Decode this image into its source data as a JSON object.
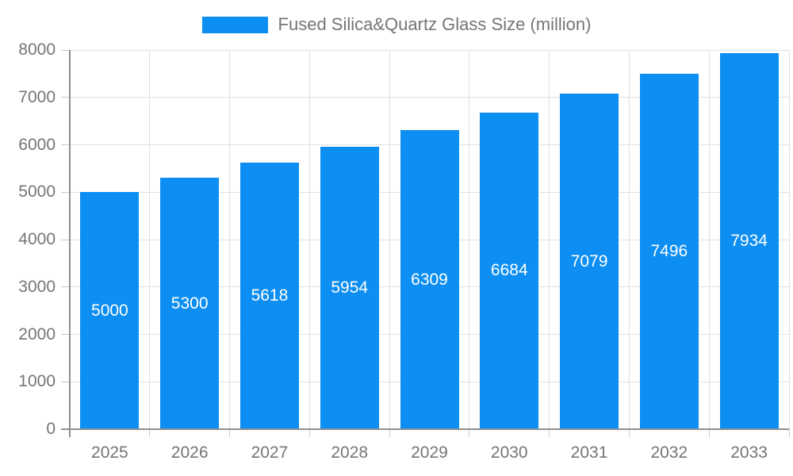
{
  "chart_data": {
    "type": "bar",
    "title": "Fused Silica&Quartz Glass Size (million)",
    "legend_position": "top",
    "categories": [
      "2025",
      "2026",
      "2027",
      "2028",
      "2029",
      "2030",
      "2031",
      "2032",
      "2033"
    ],
    "series": [
      {
        "name": "Fused Silica&Quartz Glass Size (million)",
        "values": [
          5000,
          5300,
          5618,
          5954,
          6309,
          6684,
          7079,
          7496,
          7934
        ],
        "color": "#0d8ef2"
      }
    ],
    "xlabel": "",
    "ylabel": "",
    "ylim": [
      0,
      8000
    ],
    "yticks": [
      0,
      1000,
      2000,
      3000,
      4000,
      5000,
      6000,
      7000,
      8000
    ],
    "grid": true,
    "value_labels": "inside-center",
    "value_label_color": "#ffffff"
  },
  "colors": {
    "bar": "#0d8ef2",
    "axis_text": "#757575",
    "gridline": "#e0e0e0",
    "tick": "#c9c9c9",
    "axis_line": "#8f8f8f",
    "background": "#ffffff"
  }
}
